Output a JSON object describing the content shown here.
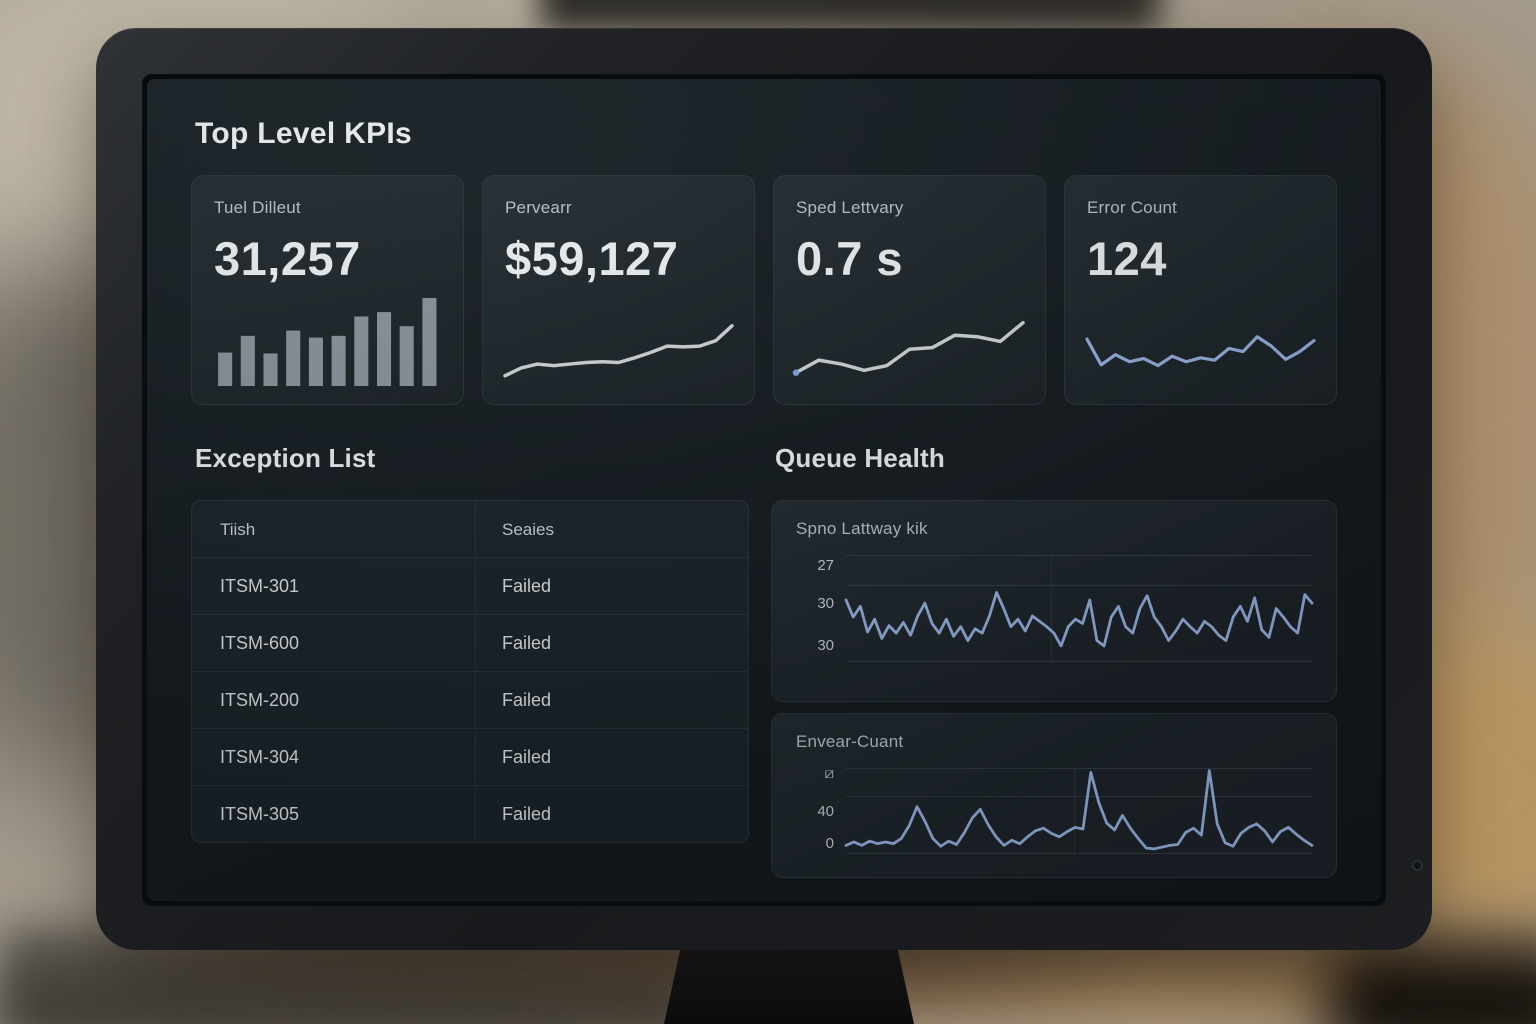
{
  "screen": {
    "title": "Top Level KPIs",
    "kpi_cards": [
      {
        "label": "Tuel Dilleut",
        "value": "31,257"
      },
      {
        "label": "Pervearr",
        "value": "$59,127"
      },
      {
        "label": "Sped Lettvary",
        "value": "0.7 s"
      },
      {
        "label": "Error Count",
        "value": "124"
      }
    ],
    "exception_list": {
      "title": "Exception List",
      "columns": [
        "Tiish",
        "Seaies"
      ],
      "rows": [
        {
          "id": "ITSM-301",
          "status": "Failed"
        },
        {
          "id": "ITSM-600",
          "status": "Failed"
        },
        {
          "id": "ITSM-200",
          "status": "Failed"
        },
        {
          "id": "ITSM-304",
          "status": "Failed"
        },
        {
          "id": "ITSM-305",
          "status": "Failed"
        }
      ]
    },
    "queue_health": {
      "title": "Queue Health"
    }
  },
  "chart_data": [
    {
      "type": "bar",
      "title": "Tuel Dilleut",
      "values": [
        38,
        57,
        37,
        63,
        55,
        57,
        79,
        84,
        68,
        100
      ],
      "color": "#97a2ab",
      "ylim": [
        0,
        100
      ],
      "grid": false
    },
    {
      "type": "line",
      "title": "Pervearr",
      "values": [
        8,
        18,
        23,
        21,
        23,
        25,
        26,
        25,
        31,
        38,
        46,
        45,
        46,
        53,
        72
      ],
      "color": "#cdd2d6",
      "ylim": [
        0,
        100
      ],
      "grid": false
    },
    {
      "type": "line",
      "title": "Sped Lettvary",
      "values": [
        12,
        28,
        23,
        15,
        21,
        42,
        44,
        60,
        58,
        52,
        76
      ],
      "color": "#cdd2d6",
      "start_dot_color": "#7fa5da",
      "ylim": [
        0,
        100
      ],
      "grid": false
    },
    {
      "type": "line",
      "title": "Error Count",
      "values": [
        55,
        22,
        35,
        26,
        30,
        21,
        33,
        26,
        31,
        28,
        43,
        39,
        58,
        46,
        29,
        39,
        53
      ],
      "color": "#94afdd",
      "ylim": [
        0,
        100
      ],
      "grid": false
    },
    {
      "type": "line",
      "title": "Spno Lattway kik",
      "y_labels": [
        "27",
        "30",
        "30"
      ],
      "values": [
        58,
        42,
        52,
        28,
        40,
        22,
        34,
        27,
        37,
        25,
        43,
        55,
        36,
        27,
        40,
        24,
        33,
        20,
        31,
        27,
        43,
        65,
        50,
        33,
        40,
        29,
        43,
        38,
        33,
        27,
        15,
        33,
        40,
        36,
        58,
        20,
        15,
        42,
        52,
        33,
        27,
        50,
        62,
        42,
        33,
        20,
        29,
        40,
        33,
        27,
        38,
        33,
        25,
        20,
        42,
        52,
        38,
        60,
        30,
        23,
        50,
        42,
        33,
        27,
        63,
        55
      ],
      "color": "#94afdd",
      "ylim": [
        0,
        100
      ],
      "grid": true
    },
    {
      "type": "line",
      "title": "Envear-Cuant",
      "y_labels": [
        "⧄",
        "40",
        "0"
      ],
      "values": [
        10,
        14,
        10,
        15,
        12,
        14,
        12,
        18,
        33,
        55,
        38,
        18,
        9,
        15,
        11,
        25,
        42,
        52,
        34,
        20,
        10,
        16,
        12,
        20,
        27,
        30,
        24,
        20,
        26,
        31,
        29,
        95,
        60,
        36,
        28,
        45,
        30,
        18,
        7,
        6,
        8,
        10,
        11,
        25,
        30,
        22,
        97,
        35,
        13,
        9,
        24,
        31,
        35,
        27,
        14,
        26,
        31,
        23,
        16,
        10
      ],
      "color": "#94afdd",
      "ylim": [
        0,
        100
      ],
      "grid": true
    }
  ],
  "colors": {
    "screen_bg": "#151c21",
    "card_bg": "#1e262c",
    "heading": "#e9edf0",
    "muted_text": "#b7c0c7",
    "table_text": "#dbe0e4",
    "gridline": "#3a434b",
    "blue_line": "#94afdd",
    "gray_line": "#cdd2d6",
    "bar_fill": "#97a2ab"
  }
}
